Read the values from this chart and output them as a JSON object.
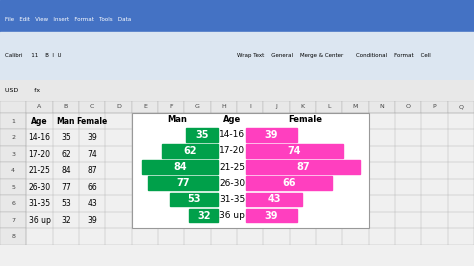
{
  "age_groups": [
    "36 up",
    "31-35",
    "26-30",
    "21-25",
    "17-20",
    "14-16"
  ],
  "man_values": [
    32,
    53,
    77,
    84,
    62,
    35
  ],
  "female_values": [
    39,
    43,
    66,
    87,
    74,
    39
  ],
  "man_color": "#00A04A",
  "female_color": "#FF3FBF",
  "man_label": "Man",
  "female_label": "Female",
  "age_label": "Age",
  "bar_text_color": "#ffffff",
  "excel_bg": "#FFFFFF",
  "toolbar_bg": "#f0f0f0",
  "ribbon_bg": "#dce6f1",
  "cell_border": "#b0b0b0",
  "green_bottom": "#66CC00",
  "table_rows": [
    [
      "14-16",
      "35",
      "39"
    ],
    [
      "17-20",
      "62",
      "74"
    ],
    [
      "21-25",
      "84",
      "87"
    ],
    [
      "26-30",
      "77",
      "66"
    ],
    [
      "31-35",
      "53",
      "43"
    ],
    [
      "36 up",
      "32",
      "39"
    ]
  ],
  "table_headers": [
    "Age",
    "Man",
    "Female"
  ],
  "fontsize_bar": 7,
  "fontsize_label": 6.5
}
